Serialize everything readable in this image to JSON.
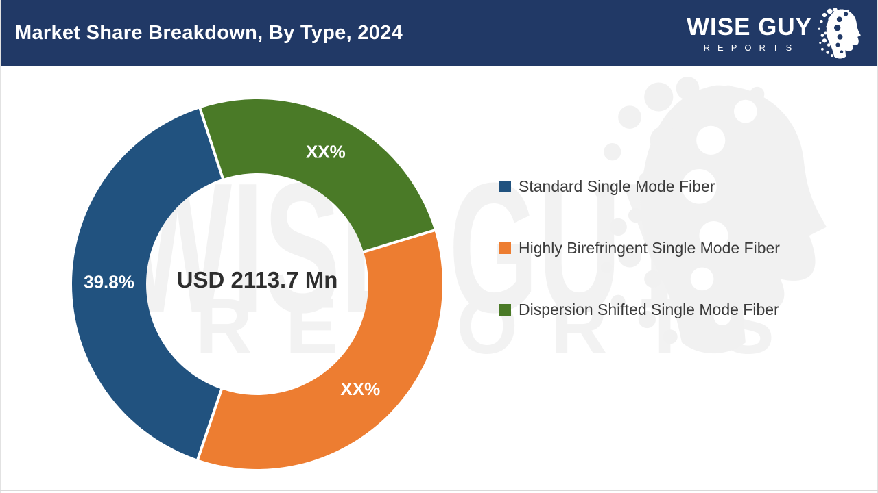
{
  "header": {
    "title": "Market Share Breakdown, By Type, 2024",
    "logo": {
      "line1": "WISE GUY",
      "line2": "REPORTS"
    }
  },
  "watermark": {
    "line1": "WISE GUY",
    "line2": "REPORTS"
  },
  "chart_data": {
    "type": "donut",
    "title": "Market Share Breakdown, By Type, 2024",
    "center_label": "USD 2113.7 Mn",
    "start_angle_deg": 108,
    "direction": "counterclockwise",
    "inner_radius_ratio": 0.6,
    "legend_position": "right",
    "segments": [
      {
        "name": "Standard Single Mode Fiber",
        "label": "39.8%",
        "value_pct": 39.8,
        "color": "#21527F"
      },
      {
        "name": "Highly Birefringent Single Mode Fiber",
        "label": "XX%",
        "value_pct": 34.9,
        "color": "#ED7D31"
      },
      {
        "name": "Dispersion Shifted Single Mode Fiber",
        "label": "XX%",
        "value_pct": 25.3,
        "color": "#4A7A27"
      }
    ]
  },
  "colors": {
    "header_bg": "#213966",
    "segment_label_text": "#ffffff",
    "center_text": "#2e2e2e",
    "legend_text": "#3b3b3b",
    "watermark": "#f2f2f2",
    "border": "#d9d9d9"
  }
}
